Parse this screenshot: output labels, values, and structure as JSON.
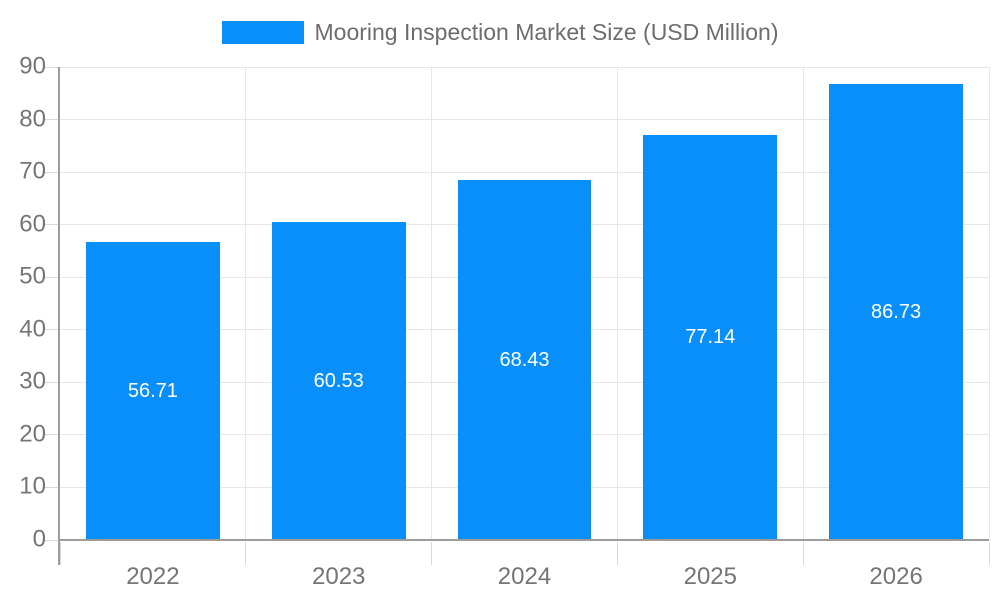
{
  "chart_data": {
    "type": "bar",
    "title": "Mooring Inspection Market Size (USD Million)",
    "legend": {
      "label": "Mooring Inspection Market Size (USD Million)",
      "position": "top-center"
    },
    "categories": [
      "2022",
      "2023",
      "2024",
      "2025",
      "2026"
    ],
    "values": [
      56.71,
      60.53,
      68.43,
      77.14,
      86.73
    ],
    "value_labels": [
      "56.71",
      "60.53",
      "68.43",
      "77.14",
      "86.73"
    ],
    "xlabel": "",
    "ylabel": "",
    "ylim": [
      0,
      90
    ],
    "yticks": [
      0,
      10,
      20,
      30,
      40,
      50,
      60,
      70,
      80,
      90
    ],
    "grid": true,
    "colors": {
      "bar": "#098ffa",
      "grid": "#e7e7e7",
      "axis": "#9c9c9c",
      "tick": "#d9d9d9",
      "tick_label": "#757575",
      "value_label": "#ffffff",
      "legend_text": "#6d6d6d",
      "background": "#ffffff"
    }
  }
}
